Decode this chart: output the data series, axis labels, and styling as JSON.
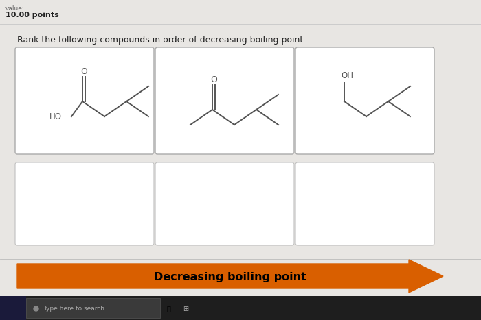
{
  "title_value": "value:",
  "title_points": "10.00 points",
  "question_text": "Rank the following compounds in order of decreasing boiling point.",
  "bottom_label": "Decreasing boiling point",
  "bg_color": "#e8e6e3",
  "box_edge_color": "#aaaaaa",
  "molecule_line_color": "#555555",
  "text_color": "#222222",
  "header_line_color": "#cccccc",
  "arrow_color": "#d95f00",
  "taskbar_color": "#1e1e1e",
  "search_bar_color": "#3a3a3a",
  "fig_width": 7.0,
  "fig_height": 4.67,
  "dpi": 100
}
